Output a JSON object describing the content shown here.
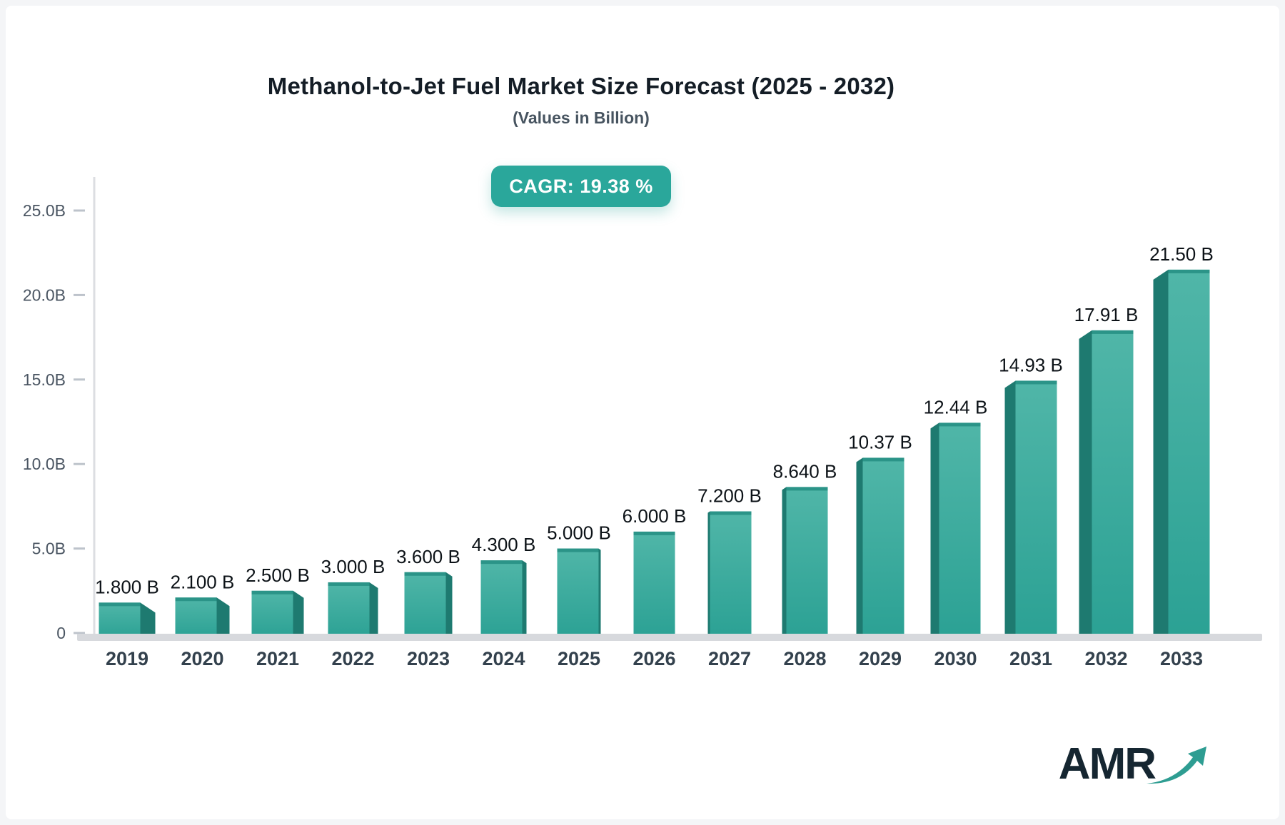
{
  "header": {
    "title": "Methanol-to-Jet Fuel Market Size Forecast (2025 - 2032)",
    "subtitle": "(Values in Billion)",
    "badge": "CAGR: 19.38 %"
  },
  "chart_data": {
    "type": "bar",
    "title": "Methanol-to-Jet Fuel Market Size Forecast (2025 - 2032)",
    "subtitle": "(Values in Billion)",
    "unit": "Billion",
    "categories": [
      "2019",
      "2020",
      "2021",
      "2022",
      "2023",
      "2024",
      "2025",
      "2026",
      "2027",
      "2028",
      "2029",
      "2030",
      "2031",
      "2032",
      "2033"
    ],
    "values": [
      1.8,
      2.1,
      2.5,
      3.0,
      3.6,
      4.3,
      5.0,
      6.0,
      7.2,
      8.64,
      10.37,
      12.44,
      14.93,
      17.91,
      21.5
    ],
    "bar_labels": [
      "1.800 B",
      "2.100 B",
      "2.500 B",
      "3.000 B",
      "3.600 B",
      "4.300 B",
      "5.000 B",
      "6.000 B",
      "7.200 B",
      "8.640 B",
      "10.37 B",
      "12.44 B",
      "14.93 B",
      "17.91 B",
      "21.50 B"
    ],
    "y_ticks": [
      "0",
      "5.0B",
      "10.0B",
      "15.0B",
      "20.0B",
      "25.0B"
    ],
    "ylim": [
      0,
      25
    ],
    "grid": "off",
    "legend": "none",
    "colors": {
      "bar_face_top": "#50b6a8",
      "bar_face_bottom": "#2ba194",
      "bar_side": "#1e7a70",
      "bar_top_edge": "#2b9488",
      "badge_bg": "#2aa79b",
      "axis_line": "#dcdee2",
      "tick_dash": "#bdc3cb",
      "baseline_strip": "#d7d9dd",
      "tick_label": "#4a5562",
      "year_label": "#33414d",
      "value_label": "#0c1217"
    }
  },
  "footer": {
    "logo_text": "AMR",
    "logo_icon": "growth-arrow-icon"
  }
}
